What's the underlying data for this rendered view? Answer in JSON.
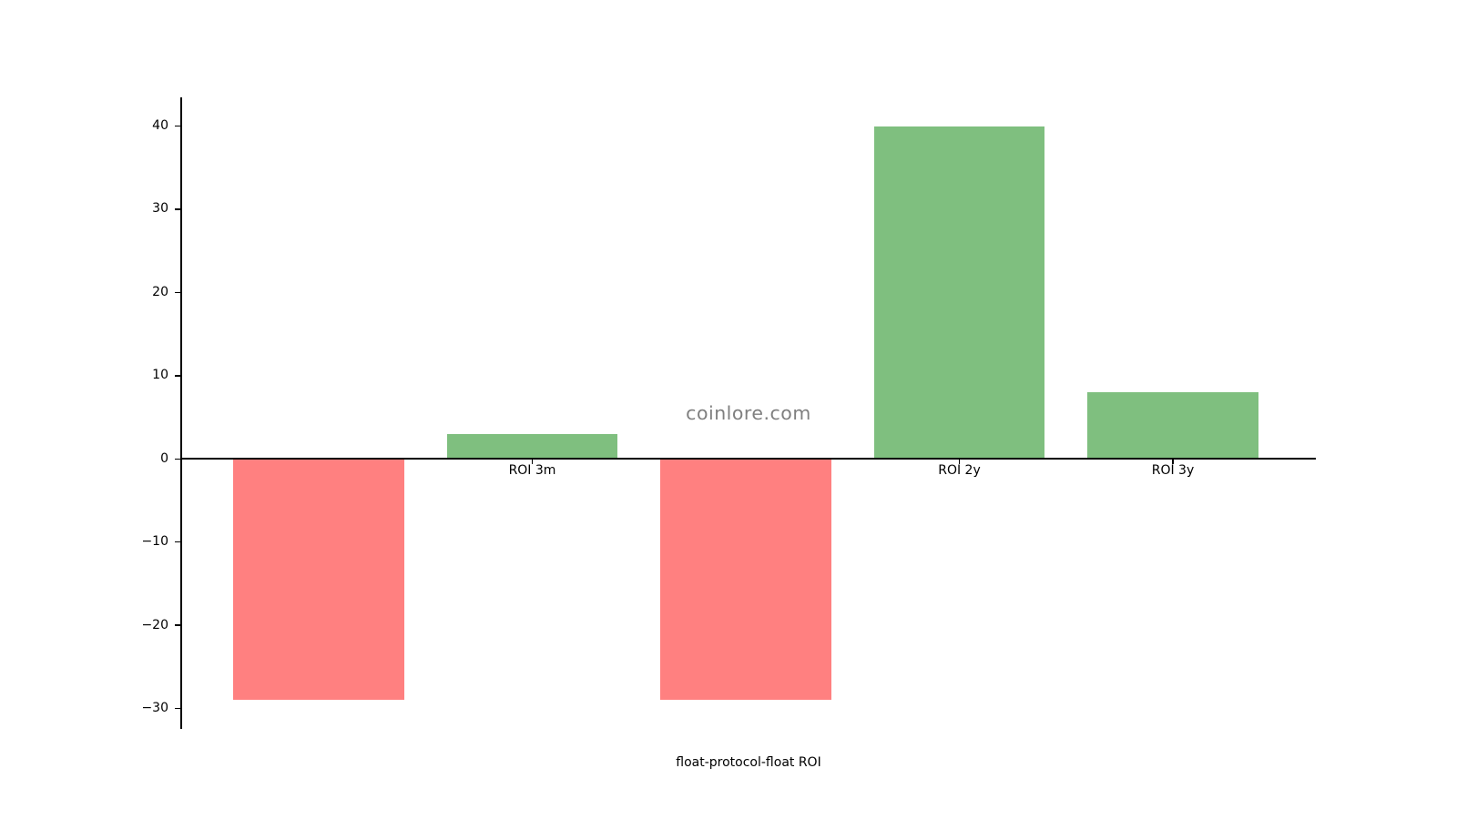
{
  "watermark": {
    "text": "coinlore.com",
    "color": "#7f7f7f"
  },
  "chart_data": {
    "type": "bar",
    "xlabel": "float-protocol-float ROI",
    "categories": [
      "",
      "ROI 3m",
      "",
      "ROI 2y",
      "ROI 3y"
    ],
    "values": [
      -29,
      3,
      -29,
      40,
      8
    ],
    "bar_colors": [
      "#ff8080",
      "#7fbf7f",
      "#ff8080",
      "#7fbf7f",
      "#7fbf7f"
    ],
    "positive_color": "#7fbf7f",
    "negative_color": "#ff8080",
    "axis_color": "#000000",
    "background_color": "#ffffff",
    "y_ticks": [
      40,
      30,
      20,
      10,
      0,
      -10,
      -20,
      -30
    ],
    "y_tick_labels": [
      "40",
      "30",
      "20",
      "10",
      "0",
      "−10",
      "−20",
      "−30"
    ],
    "ylim": [
      -32.45,
      43.45
    ],
    "grid": false,
    "legend": false,
    "x_tick_labels_hidden_by_bars": [
      true,
      false,
      true,
      false,
      false
    ]
  }
}
